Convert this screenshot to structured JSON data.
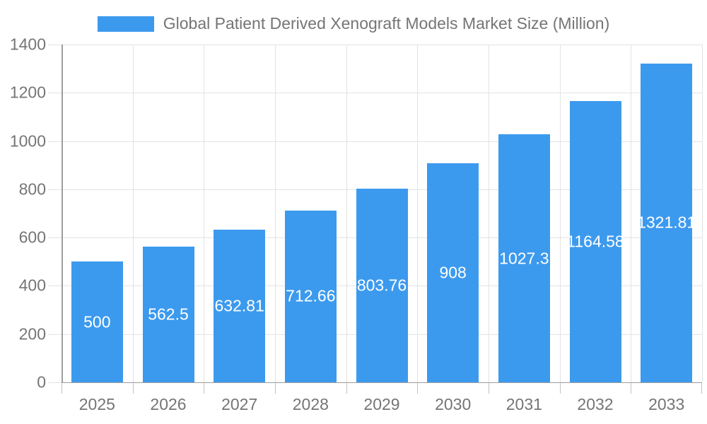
{
  "legend": {
    "label": "Global Patient Derived Xenograft Models Market Size (Million)"
  },
  "chart_data": {
    "type": "bar",
    "title": "Global Patient Derived Xenograft Models Market Size (Million)",
    "categories": [
      "2025",
      "2026",
      "2027",
      "2028",
      "2029",
      "2030",
      "2031",
      "2032",
      "2033"
    ],
    "values": [
      500,
      562.5,
      632.81,
      712.66,
      803.76,
      908,
      1027.3,
      1164.58,
      1321.81
    ],
    "bar_labels": [
      "500",
      "562.5",
      "632.81",
      "712.66",
      "803.76",
      "908",
      "1027.3",
      "1164.58",
      "1321.81"
    ],
    "xlabel": "",
    "ylabel": "",
    "ylim": [
      0,
      1400
    ],
    "yticks": [
      0,
      200,
      400,
      600,
      800,
      1000,
      1200,
      1400
    ],
    "grid": true,
    "legend_position": "top",
    "colors": {
      "bar": "#3C9AEE",
      "value_label": "#ffffff",
      "axis_text": "#757575",
      "grid_line": "#e3e3e3",
      "axis_line": "#9e9e9e"
    }
  }
}
